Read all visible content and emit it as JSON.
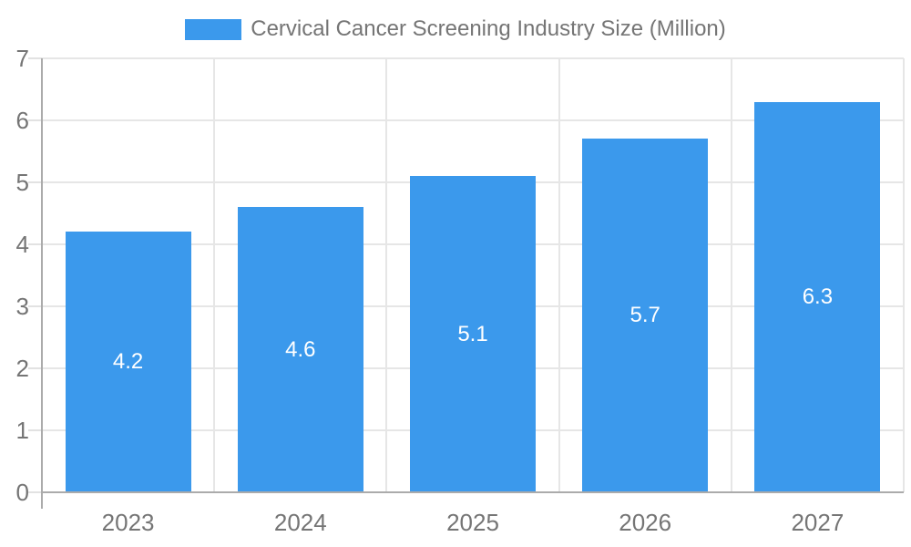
{
  "chart_data": {
    "type": "bar",
    "title": "Cervical Cancer Screening Industry Size (Million)",
    "legend": {
      "position": "top",
      "entries": [
        {
          "label": "Cervical Cancer Screening Industry Size (Million)",
          "color": "#3B99EC"
        }
      ]
    },
    "categories": [
      "2023",
      "2024",
      "2025",
      "2026",
      "2027"
    ],
    "values": [
      4.2,
      4.6,
      5.1,
      5.7,
      6.3
    ],
    "value_labels": [
      "4.2",
      "4.6",
      "5.1",
      "5.7",
      "6.3"
    ],
    "xlabel": "",
    "ylabel": "",
    "ylim": [
      0,
      7
    ],
    "yticks": [
      0,
      1,
      2,
      3,
      4,
      5,
      6,
      7
    ],
    "grid": true,
    "colors": {
      "bar": "#3B99EC",
      "axis_text": "#757575",
      "gridline": "#E6E6E6",
      "axis_line": "#ABABAB",
      "value_label": "#FFFFFF",
      "background": "#FFFFFF"
    }
  }
}
